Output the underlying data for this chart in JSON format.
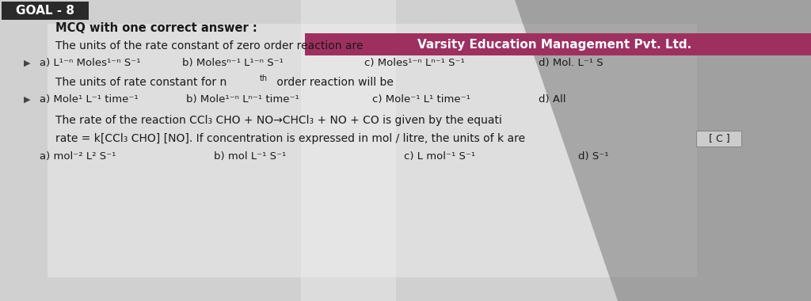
{
  "bg_color": "#c8c8c8",
  "goal_bg": "#2a2a2a",
  "goal_text": "GOAL - 8",
  "goal_text_color": "#ffffff",
  "banner_color": "#9e3060",
  "banner_text": "Varsity Education Management Pvt. Ltd.",
  "banner_text_color": "#ffffff",
  "text_color": "#1a1a1a",
  "mcq_heading": "MCQ with one correct answer :",
  "q1_stem": "The units of the rate constant of zero order reaction are",
  "q2_stem": "The units of rate constant for n",
  "q2_stem2": "th",
  "q2_stem3": " order reaction will be",
  "q3_line1": "The rate of the reaction CCl₃ CHO + NO→CHCl₃ + NO + CO is given by the equati",
  "q3_line2": "rate = k[CCl₃ CHO] [NO]. If concentration is expressed in mol / litre, the units of k are",
  "fs_heading": 10.5,
  "fs_stem": 10,
  "fs_options": 9.5
}
